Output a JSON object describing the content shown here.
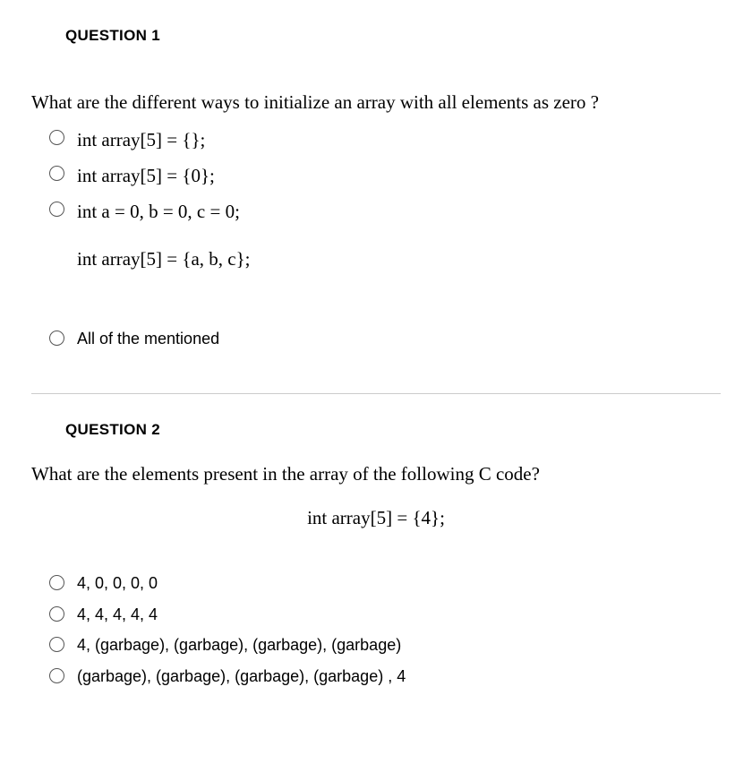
{
  "q1": {
    "heading": "QUESTION 1",
    "prompt": "What are the different ways to initialize an array with all elements as zero ?",
    "options": [
      {
        "text": "int array[5] = {};",
        "style": "serif",
        "sub": null
      },
      {
        "text": "int array[5] = {0};",
        "style": "serif",
        "sub": null
      },
      {
        "text": "int a = 0,  b = 0,  c = 0;",
        "style": "serif",
        "sub": "int array[5] = {a, b, c};"
      },
      {
        "text": "All of the mentioned",
        "style": "sans",
        "sub": null
      }
    ]
  },
  "q2": {
    "heading": "QUESTION 2",
    "prompt": "What are the elements present in the array of the following C code?",
    "code": "int array[5] = {4};",
    "options": [
      {
        "text": "4, 0, 0, 0, 0",
        "style": "sans"
      },
      {
        "text": "4, 4, 4, 4, 4",
        "style": "sans"
      },
      {
        "text": "4, (garbage),  (garbage),  (garbage),  (garbage)",
        "style": "sans"
      },
      {
        "text": "(garbage),  (garbage),  (garbage),  (garbage) , 4",
        "style": "sans"
      }
    ]
  },
  "colors": {
    "text": "#000000",
    "background": "#ffffff",
    "radio_border": "#555555",
    "divider": "#cccccc"
  }
}
